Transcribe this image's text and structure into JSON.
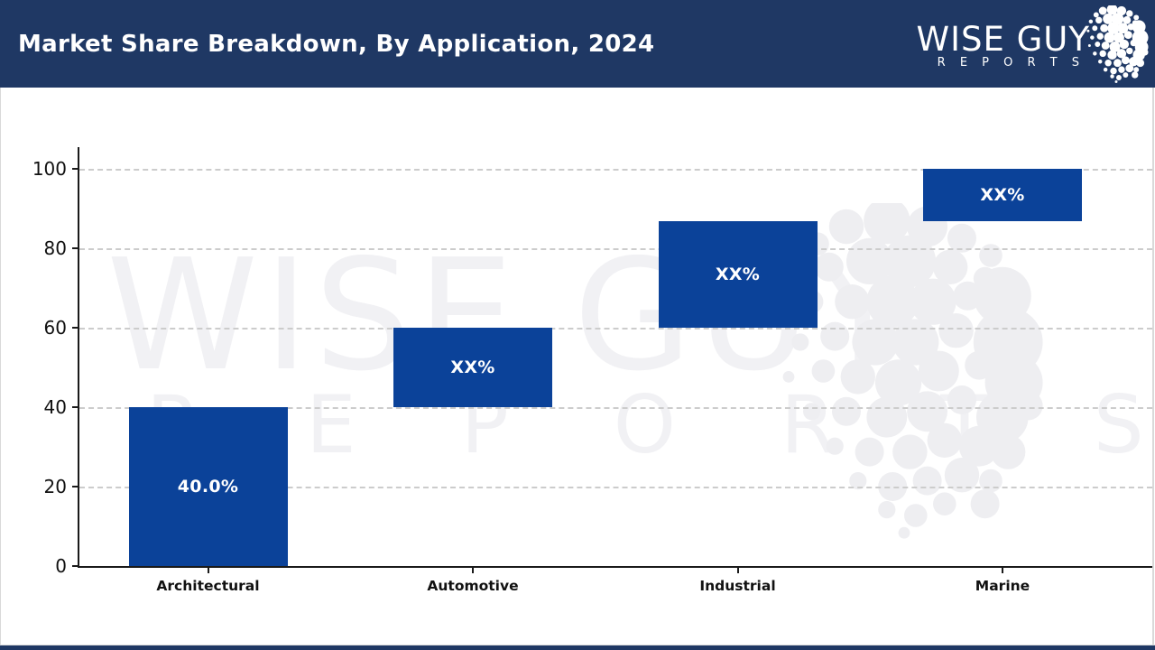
{
  "header": {
    "title": "Market Share Breakdown, By Application, 2024",
    "logo": {
      "line1": "WISE GUY",
      "line2": "R E P O R T S"
    }
  },
  "watermark": {
    "line1": "WISE GUY",
    "line2": "R E P O R T S"
  },
  "chart_data": {
    "type": "bar",
    "subtype": "waterfall",
    "title": "Market Share Breakdown, By Application, 2024",
    "categories": [
      "Architectural",
      "Automotive",
      "Industrial",
      "Marine"
    ],
    "segments": [
      {
        "category": "Architectural",
        "start": 0,
        "end": 40,
        "label": "40.0%"
      },
      {
        "category": "Automotive",
        "start": 40,
        "end": 60,
        "label": "XX%"
      },
      {
        "category": "Industrial",
        "start": 60,
        "end": 86.7,
        "label": "XX%"
      },
      {
        "category": "Marine",
        "start": 86.7,
        "end": 100,
        "label": "XX%"
      }
    ],
    "yticks": [
      0,
      20,
      40,
      60,
      80,
      100
    ],
    "ylim": [
      0,
      105
    ],
    "xlabel": "",
    "ylabel": "",
    "grid": "horizontal-dashed",
    "legend": "none",
    "bar_color": "#0b4299",
    "bar_label_color": "#ffffff"
  },
  "colors": {
    "header_bg": "#1f3864",
    "footer_bg": "#1f3864",
    "axis": "#1a1a1a",
    "grid": "#cccccc",
    "watermark": "#f1f1f4",
    "chart_bg": "#ffffff"
  }
}
